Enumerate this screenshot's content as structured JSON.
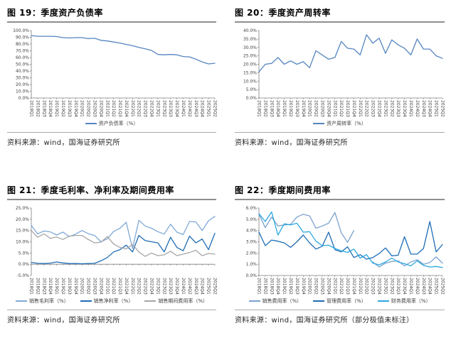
{
  "page": {
    "background": "#ffffff"
  },
  "chart_data": [
    {
      "id": "fig19",
      "type": "line",
      "title": "图 19：季度资产负债率",
      "source": "资料来源：wind，国海证券研究所",
      "ylim": [
        0,
        100
      ],
      "ystep": 10,
      "tick_suffix": "%",
      "grid": false,
      "legend_position": "bottom",
      "categories": [
        "2018Q1",
        "2018Q2",
        "2018Q3",
        "2018Q4",
        "2019Q1",
        "2019Q2",
        "2019Q3",
        "2019Q4",
        "2020Q1",
        "2020Q2",
        "2020Q3",
        "2020Q4",
        "2021Q1",
        "2021Q2",
        "2021Q3",
        "2021Q4",
        "2022Q1",
        "2022Q2",
        "2022Q3",
        "2022Q4",
        "2023Q1",
        "2023Q2",
        "2023Q3",
        "2023Q4",
        "2024Q1",
        "2024Q2",
        "2024Q3",
        "2024Q4",
        "2025Q1",
        "2025Q2"
      ],
      "series": [
        {
          "name": "资产负债率（%）",
          "color": "#5585c0",
          "values": [
            92.5,
            91.5,
            91.5,
            91.5,
            91.0,
            89.5,
            89.0,
            89.5,
            89.5,
            88.0,
            88.5,
            85.5,
            84.5,
            83.0,
            81.5,
            79.5,
            77.5,
            75.0,
            73.0,
            70.5,
            64.5,
            64.0,
            64.5,
            64.0,
            61.5,
            61.0,
            57.5,
            53.5,
            50.5,
            51.5
          ]
        }
      ]
    },
    {
      "id": "fig20",
      "type": "line",
      "title": "图 20：季度资产周转率",
      "source": "资料来源：wind，国海证券研究所",
      "ylim": [
        0,
        40
      ],
      "ystep": 5,
      "tick_suffix": "%",
      "grid": false,
      "legend_position": "bottom",
      "categories": [
        "2018Q1",
        "2018Q2",
        "2018Q3",
        "2018Q4",
        "2019Q1",
        "2019Q2",
        "2019Q3",
        "2019Q4",
        "2020Q1",
        "2020Q2",
        "2020Q3",
        "2020Q4",
        "2021Q1",
        "2021Q2",
        "2021Q3",
        "2021Q4",
        "2022Q1",
        "2022Q2",
        "2022Q3",
        "2022Q4",
        "2023Q1",
        "2023Q2",
        "2023Q3",
        "2023Q4",
        "2024Q1",
        "2024Q2",
        "2024Q3",
        "2024Q4",
        "2025Q1",
        "2025Q2"
      ],
      "series": [
        {
          "name": "资产周转率（%）",
          "color": "#5585c0",
          "values": [
            15.5,
            20.0,
            20.5,
            24.0,
            20.0,
            22.0,
            20.0,
            21.5,
            18.0,
            28.0,
            25.5,
            23.0,
            24.0,
            33.5,
            29.5,
            29.0,
            25.5,
            37.5,
            32.5,
            35.5,
            26.5,
            34.5,
            31.5,
            29.5,
            25.5,
            35.0,
            29.0,
            29.0,
            25.0,
            23.5
          ]
        }
      ]
    },
    {
      "id": "fig21",
      "type": "line",
      "title": "图 21：季度毛利率、净利率及期间费用率",
      "source": "资料来源：wind，国海证券研究所",
      "ylim": [
        -5,
        25
      ],
      "ystep": 5,
      "tick_suffix": "%",
      "grid": false,
      "legend_position": "bottom",
      "categories": [
        "2018Q1",
        "2018Q2",
        "2018Q3",
        "2018Q4",
        "2019Q1",
        "2019Q2",
        "2019Q3",
        "2019Q4",
        "2020Q1",
        "2020Q2",
        "2020Q3",
        "2020Q4",
        "2021Q1",
        "2021Q2",
        "2021Q3",
        "2021Q4",
        "2022Q1",
        "2022Q2",
        "2022Q3",
        "2022Q4",
        "2023Q1",
        "2023Q2",
        "2023Q3",
        "2023Q4",
        "2024Q1",
        "2024Q2",
        "2024Q3",
        "2024Q4",
        "2025Q1",
        "2025Q2"
      ],
      "series": [
        {
          "name": "销售毛利率（%）",
          "color": "#7fa8d6",
          "values": [
            17.3,
            13.5,
            14.8,
            14.4,
            13.0,
            14.3,
            12.3,
            13.4,
            15.0,
            13.6,
            12.8,
            10.0,
            11.3,
            14.6,
            16.0,
            18.7,
            7.0,
            19.5,
            17.0,
            16.0,
            14.5,
            13.4,
            17.8,
            14.3,
            13.2,
            19.0,
            18.8,
            15.0,
            19.3,
            21.3
          ]
        },
        {
          "name": "销售净利率（%）",
          "color": "#1f6cb4",
          "values": [
            0.8,
            0.4,
            0.3,
            0.5,
            1.0,
            0.6,
            0.3,
            0.3,
            0.2,
            0.3,
            0.4,
            1.5,
            3.0,
            5.5,
            6.5,
            8.5,
            5.5,
            12.8,
            10.5,
            10.0,
            9.5,
            5.5,
            12.0,
            7.5,
            6.0,
            12.5,
            9.5,
            11.2,
            6.5,
            13.8
          ]
        },
        {
          "name": "销售期间费用率（%）",
          "color": "#a6a6a6",
          "values": [
            15.0,
            12.0,
            13.5,
            11.5,
            12.1,
            11.0,
            12.5,
            12.8,
            12.8,
            11.0,
            9.5,
            9.8,
            12.3,
            9.0,
            7.5,
            6.8,
            8.8,
            5.5,
            3.5,
            5.0,
            3.8,
            4.2,
            5.8,
            3.8,
            4.5,
            5.2,
            6.2,
            3.8,
            4.8,
            4.5
          ]
        }
      ]
    },
    {
      "id": "fig22",
      "type": "line",
      "title": "图 22：季度期间费用率",
      "source": "资料来源：wind，国海证券研究所（部分极值未标注）",
      "ylim": [
        0,
        6
      ],
      "ystep": 1,
      "tick_suffix": "%",
      "grid": false,
      "legend_position": "bottom",
      "categories": [
        "2018Q1",
        "2018Q2",
        "2018Q3",
        "2018Q4",
        "2019Q1",
        "2019Q2",
        "2019Q3",
        "2019Q4",
        "2020Q1",
        "2020Q2",
        "2020Q3",
        "2020Q4",
        "2021Q1",
        "2021Q2",
        "2021Q3",
        "2021Q4",
        "2022Q1",
        "2022Q2",
        "2022Q3",
        "2022Q4",
        "2023Q1",
        "2023Q2",
        "2023Q3",
        "2023Q4",
        "2024Q1",
        "2024Q2",
        "2024Q3",
        "2024Q4",
        "2025Q1",
        "2025Q2"
      ],
      "series": [
        {
          "name": "销售费用率（%）",
          "color": "#7aa1ce",
          "values": [
            5.45,
            4.25,
            5.2,
            4.4,
            4.5,
            4.55,
            5.2,
            5.45,
            5.3,
            4.2,
            4.4,
            4.65,
            5.6,
            3.8,
            2.95,
            4.0,
            null,
            null,
            1.2,
            0.75,
            1.1,
            1.25,
            1.3,
            0.85,
            1.2,
            1.4,
            1.0,
            1.15,
            1.65,
            1.1
          ]
        },
        {
          "name": "管理费用率（%）",
          "color": "#1f6cb4",
          "values": [
            3.85,
            2.65,
            3.15,
            3.05,
            2.9,
            2.5,
            3.0,
            3.6,
            2.9,
            2.35,
            2.6,
            3.85,
            2.3,
            2.1,
            2.55,
            1.6,
            1.85,
            1.45,
            1.6,
            1.95,
            2.45,
            1.75,
            1.8,
            3.45,
            1.9,
            1.9,
            2.4,
            4.8,
            2.1,
            2.75
          ]
        },
        {
          "name": "财务费用率（%）",
          "color": "#2ba8e0",
          "values": [
            5.5,
            4.8,
            5.65,
            3.6,
            4.6,
            4.5,
            4.65,
            3.85,
            3.9,
            3.05,
            2.65,
            2.7,
            2.4,
            2.2,
            2.05,
            2.35,
            1.55,
            1.85,
            1.1,
            0.95,
            1.2,
            1.55,
            1.2,
            1.05,
            0.85,
            1.3,
            0.9,
            0.75,
            0.8,
            0.7
          ]
        }
      ]
    }
  ]
}
